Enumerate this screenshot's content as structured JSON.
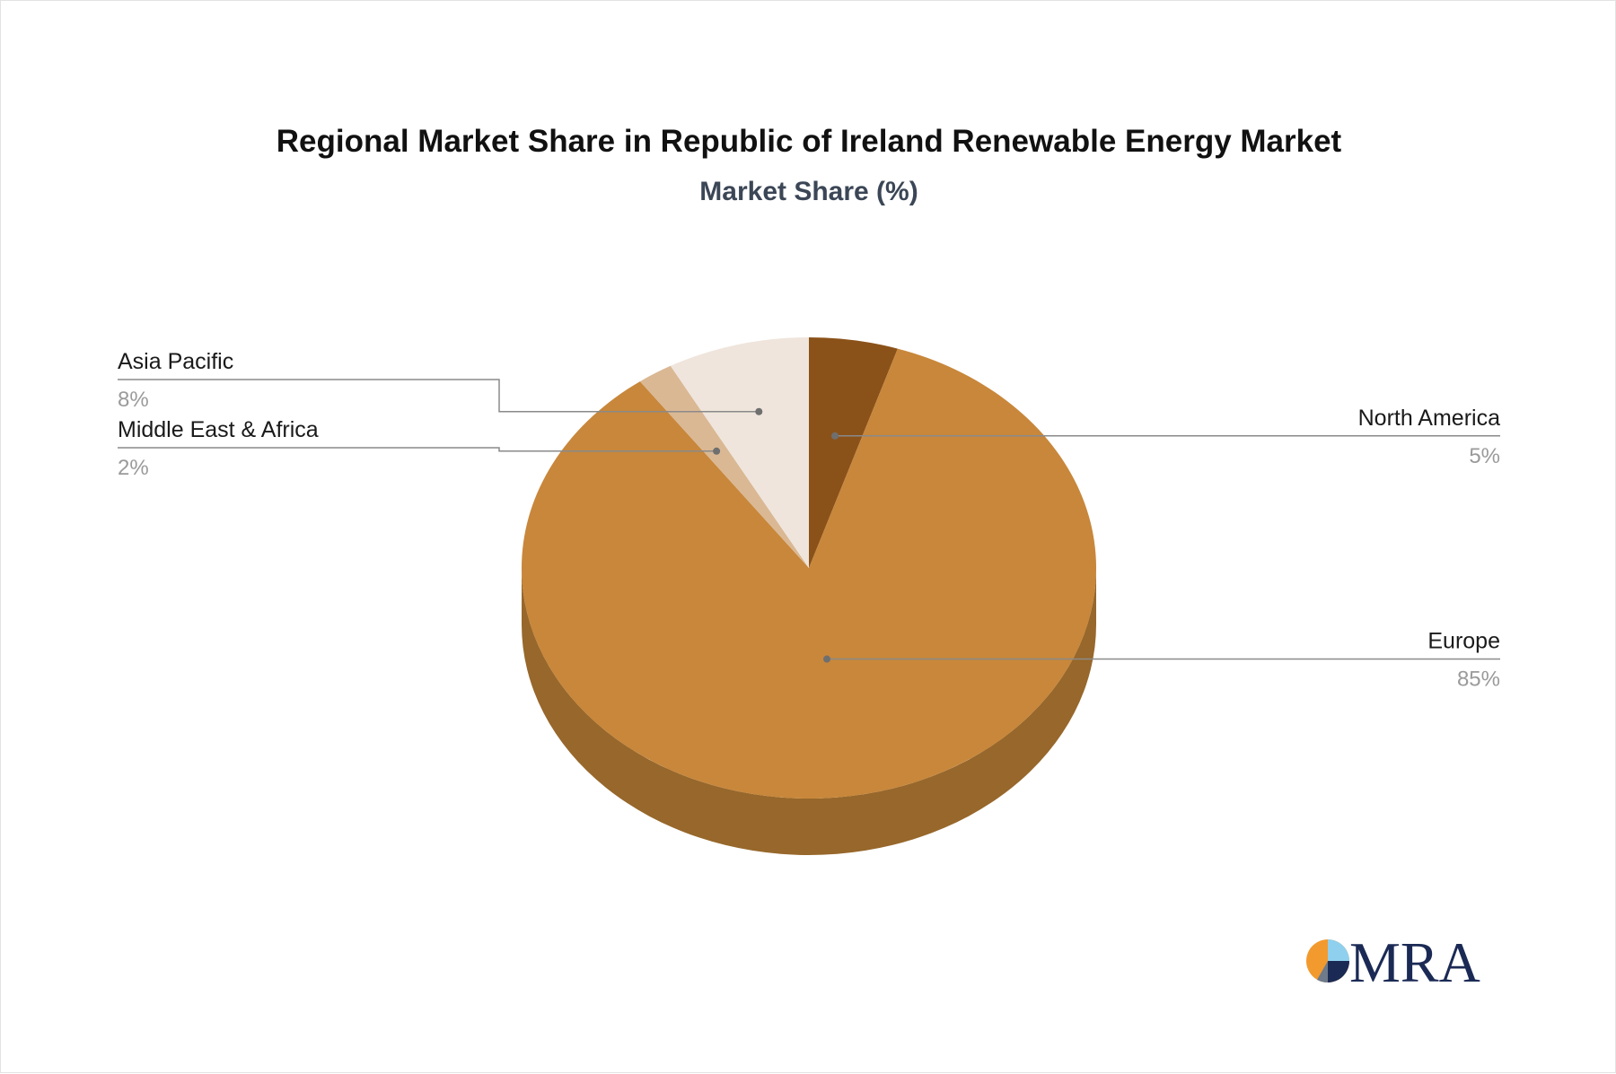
{
  "chart_data": {
    "type": "pie",
    "title": "Regional Market Share in Republic of Ireland Renewable Energy Market",
    "subtitle": "Market Share (%)",
    "categories": [
      "North America",
      "Europe",
      "Middle East & Africa",
      "Asia Pacific"
    ],
    "values": [
      5,
      85,
      2,
      8
    ],
    "value_labels": [
      "5%",
      "85%",
      "2%",
      "8%"
    ],
    "colors": [
      "#8a5219",
      "#c8873b",
      "#dab894",
      "#efe5dc"
    ],
    "side_colors": [
      "#5f3810",
      "#97672b",
      "#a98d70",
      "#c4b8ad"
    ],
    "style": "3d",
    "start_angle_deg": 0,
    "direction": "clockwise"
  },
  "logo": {
    "text": "MRA"
  }
}
